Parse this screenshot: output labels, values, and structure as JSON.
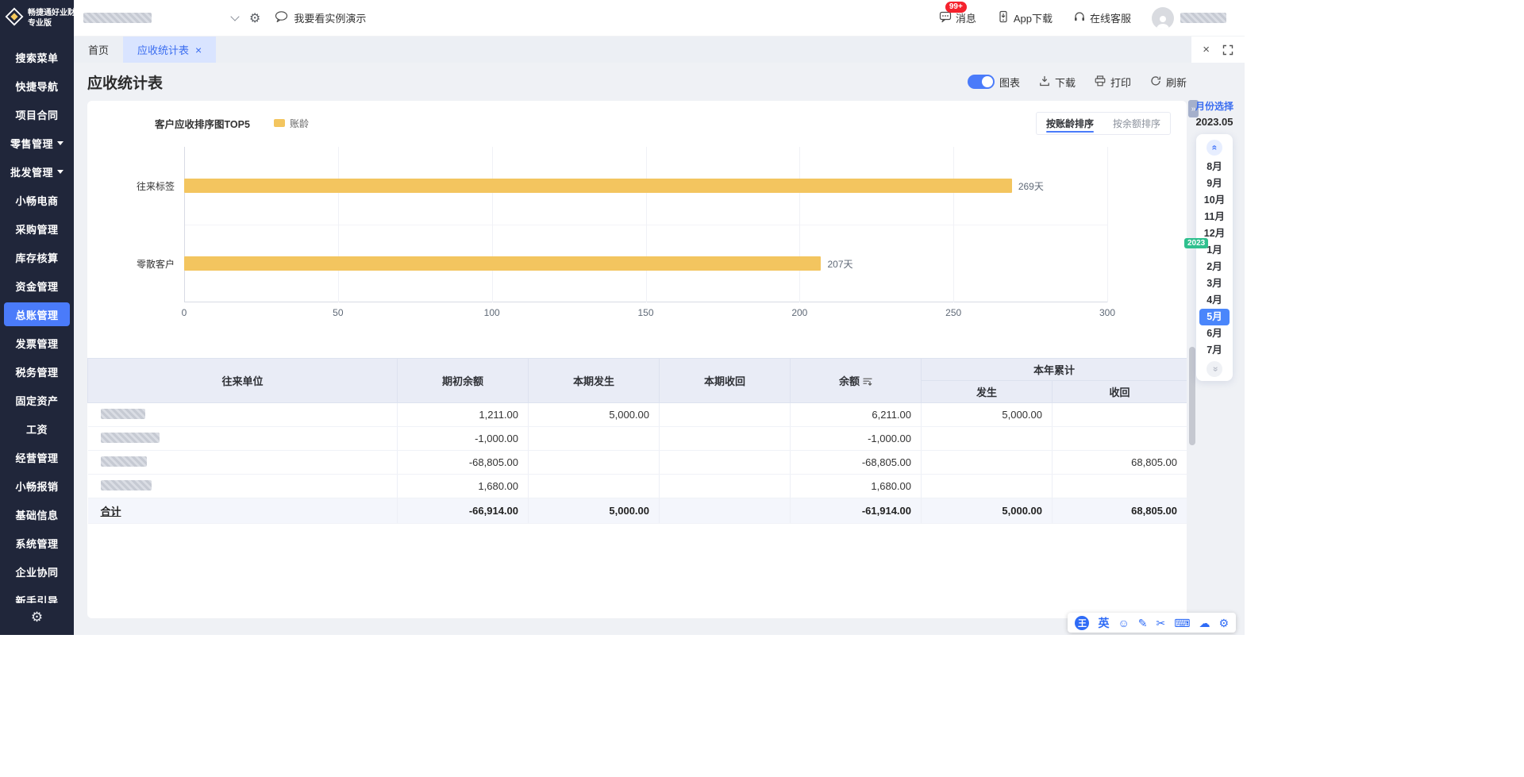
{
  "brand": {
    "line1": "畅捷通好业财",
    "line2": "专业版"
  },
  "topbar": {
    "demo_link": "我要看实例演示",
    "messages": "消息",
    "messages_badge": "99+",
    "app_download": "App下载",
    "online_service": "在线客服"
  },
  "sidebar": {
    "items": [
      {
        "label": "搜索菜单"
      },
      {
        "label": "快捷导航"
      },
      {
        "label": "项目合同"
      },
      {
        "label": "零售管理",
        "arrow": true
      },
      {
        "label": "批发管理",
        "arrow": true
      },
      {
        "label": "小畅电商"
      },
      {
        "label": "采购管理"
      },
      {
        "label": "库存核算"
      },
      {
        "label": "资金管理"
      },
      {
        "label": "总账管理",
        "active": true
      },
      {
        "label": "发票管理"
      },
      {
        "label": "税务管理"
      },
      {
        "label": "固定资产"
      },
      {
        "label": "工资"
      },
      {
        "label": "经营管理"
      },
      {
        "label": "小畅报销"
      },
      {
        "label": "基础信息"
      },
      {
        "label": "系统管理"
      },
      {
        "label": "企业协同"
      },
      {
        "label": "新手引导"
      }
    ]
  },
  "tabs": [
    {
      "label": "首页",
      "active": false,
      "closable": false
    },
    {
      "label": "应收统计表",
      "active": true,
      "closable": true
    }
  ],
  "page": {
    "title": "应收统计表",
    "chart_toggle_label": "图表",
    "download_label": "下载",
    "print_label": "打印",
    "refresh_label": "刷新"
  },
  "chart": {
    "title": "客户应收排序图TOP5",
    "legend_label": "账龄",
    "sort_tabs": [
      {
        "label": "按账龄排序",
        "active": true
      },
      {
        "label": "按余额排序",
        "active": false
      }
    ]
  },
  "chart_data": {
    "type": "bar",
    "orientation": "horizontal",
    "title": "客户应收排序图TOP5",
    "legend": [
      "账龄"
    ],
    "legend_position": "top",
    "categories": [
      "往来标签",
      "零散客户"
    ],
    "series": [
      {
        "name": "账龄",
        "values": [
          269,
          207
        ]
      }
    ],
    "value_labels": [
      "269天",
      "207天"
    ],
    "xlim": [
      0,
      300
    ],
    "x_ticks": [
      0,
      50,
      100,
      150,
      200,
      250,
      300
    ],
    "grid": true,
    "bar_color": "#f3c55f"
  },
  "table": {
    "columns": [
      "往来单位",
      "期初余额",
      "本期发生",
      "本期收回",
      "余额",
      "本年累计"
    ],
    "subcolumns": [
      "发生",
      "收回"
    ],
    "rows": [
      {
        "redacted_name": true,
        "values": [
          "1,211.00",
          "5,000.00",
          "",
          "6,211.00",
          "5,000.00",
          ""
        ]
      },
      {
        "redacted_name": true,
        "values": [
          "-1,000.00",
          "",
          "",
          "-1,000.00",
          "",
          ""
        ]
      },
      {
        "redacted_name": true,
        "values": [
          "-68,805.00",
          "",
          "",
          "-68,805.00",
          "",
          "68,805.00"
        ]
      },
      {
        "redacted_name": true,
        "values": [
          "1,680.00",
          "",
          "",
          "1,680.00",
          "",
          ""
        ]
      }
    ],
    "total": {
      "label": "合计",
      "values": [
        "-66,914.00",
        "5,000.00",
        "",
        "-61,914.00",
        "5,000.00",
        "68,805.00"
      ]
    }
  },
  "month_panel": {
    "title": "月份选择",
    "current": "2023.05",
    "year_tag": "2023",
    "months": [
      "8月",
      "9月",
      "10月",
      "11月",
      "12月",
      "1月",
      "2月",
      "3月",
      "4月",
      "5月",
      "6月",
      "7月"
    ],
    "selected_month": "5月"
  },
  "ime": {
    "lang_circle": "王",
    "lang_text": "英"
  }
}
